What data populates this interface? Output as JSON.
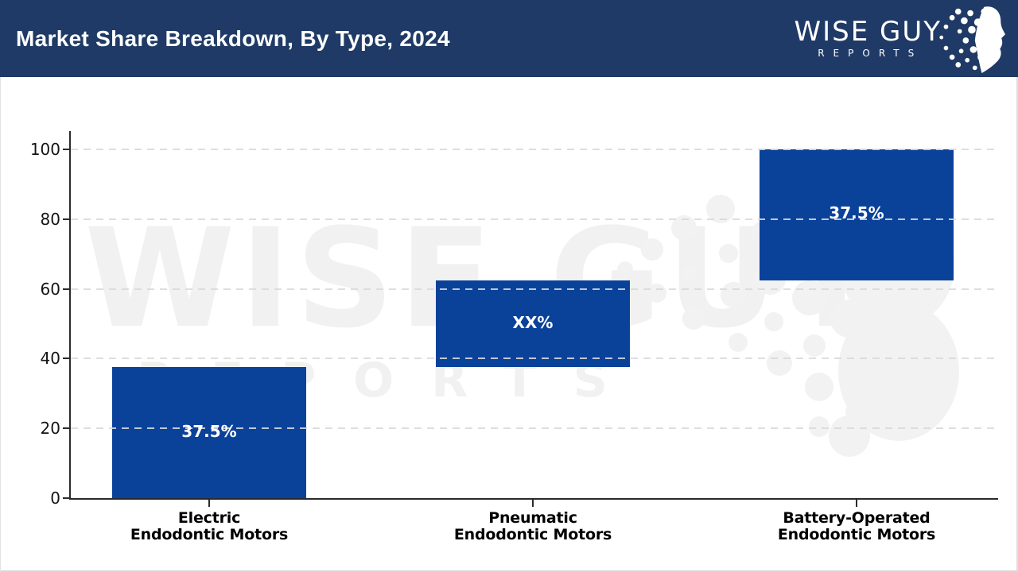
{
  "header": {
    "title": "Market Share Breakdown, By Type, 2024",
    "logo": {
      "line1": "WISE GUY",
      "line2": "REPORTS"
    }
  },
  "watermark": {
    "line1": "WISE GUY",
    "line2": "REPORTS"
  },
  "colors": {
    "header_bg": "#1f3a66",
    "bar": "#0a429a",
    "bar_label": "#ffffff",
    "gridline": "#d9d9d9",
    "axis": "#2a2a2a",
    "watermark": "#f1f1f1"
  },
  "chart_data": {
    "type": "bar",
    "subtype": "floating-waterfall",
    "title": "Market Share Breakdown, By Type, 2024",
    "categories": [
      "Electric\nEndodontic Motors",
      "Pneumatic\nEndodontic Motors",
      "Battery-Operated\nEndodontic Motors"
    ],
    "bars": [
      {
        "category": "Electric Endodontic Motors",
        "start": 0,
        "end": 37.5,
        "height": 37.5,
        "label": "37.5%"
      },
      {
        "category": "Pneumatic Endodontic Motors",
        "start": 37.5,
        "end": 62.5,
        "height": 25,
        "label": "XX%"
      },
      {
        "category": "Battery-Operated Endodontic Motors",
        "start": 62.5,
        "end": 100,
        "height": 37.5,
        "label": "37.5%"
      }
    ],
    "xlabel": "",
    "ylabel": "",
    "ylim": [
      0,
      105
    ],
    "yticks": [
      0,
      20,
      40,
      60,
      80,
      100
    ],
    "grid": "horizontal dashed, drawn over bars",
    "legend": "none"
  }
}
